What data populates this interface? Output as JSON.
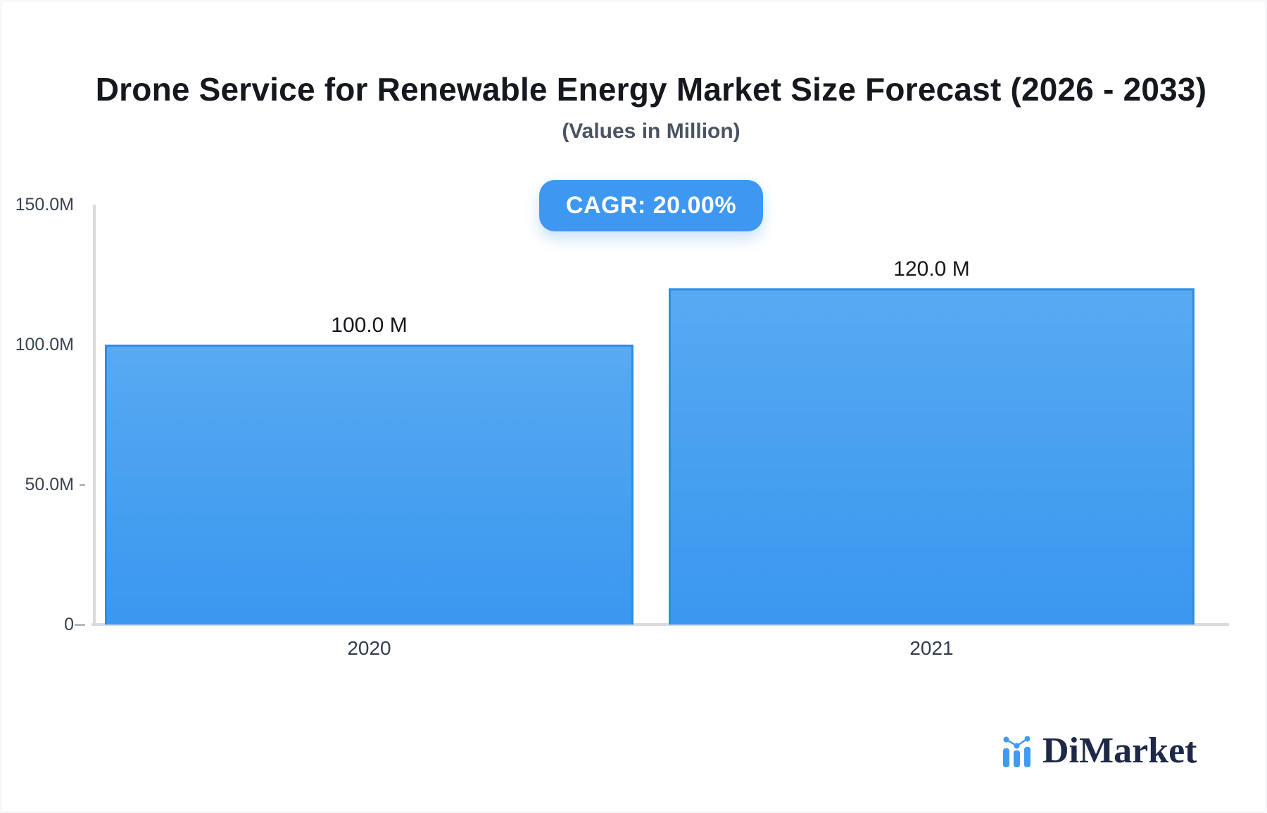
{
  "header": {
    "title": "Drone Service for Renewable Energy Market Size Forecast (2026 - 2033)",
    "subtitle": "(Values in Million)",
    "cagr_badge": "CAGR: 20.00%"
  },
  "chart_data": {
    "type": "bar",
    "title": "Drone Service for Renewable Energy Market Size Forecast (2026 - 2033)",
    "subtitle": "(Values in Million)",
    "unit": "Million",
    "categories": [
      "2020",
      "2021"
    ],
    "values": [
      100,
      120
    ],
    "value_labels": [
      "100.0 M",
      "120.0 M"
    ],
    "cagr_percent": 20.0,
    "ylim": [
      0,
      150
    ],
    "yticks": [
      {
        "value": 0,
        "label": "0",
        "dash": true
      },
      {
        "value": 50,
        "label": "50.0M",
        "dash": true
      },
      {
        "value": 100,
        "label": "100.0M",
        "dash": false
      },
      {
        "value": 150,
        "label": "150.0M",
        "dash": false
      }
    ],
    "grid": "off",
    "legend": "none",
    "bar_color_top": "#58aaf2",
    "bar_color_bottom": "#3b97ef",
    "bar_border_color": "#2d8de5"
  },
  "footer": {
    "logo_text": "DiMarket",
    "logo_icon": "mini-bar-chart-icon"
  },
  "colors": {
    "accent_blue": "#3e98f2",
    "axis_gray": "#d9dbe0",
    "title_text": "#15181e",
    "subtitle_text": "#4a5361",
    "tick_text": "#39424f",
    "logo_navy": "#1d2946",
    "logo_blue": "#3f9bf4"
  }
}
